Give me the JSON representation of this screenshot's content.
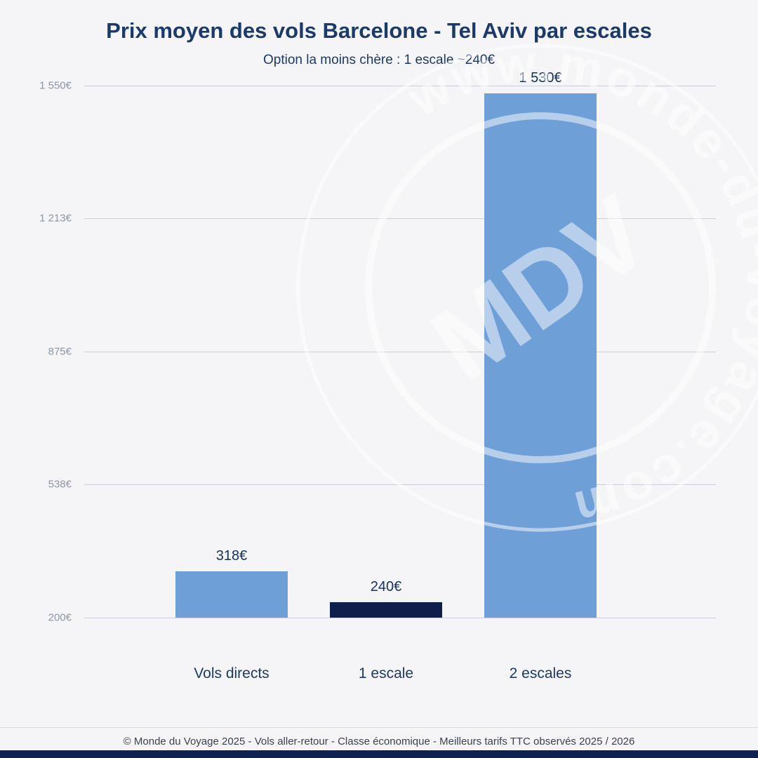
{
  "title": "Prix moyen des vols Barcelone - Tel Aviv par escales",
  "subtitle": "Option la moins chère : 1 escale ~240€",
  "chart_data": {
    "type": "bar",
    "title": "Prix moyen des vols Barcelone - Tel Aviv par escales",
    "subtitle": "Option la moins chère : 1 escale ~240€",
    "categories": [
      "Vols directs",
      "1 escale",
      "2 escales"
    ],
    "values": [
      318,
      240,
      1530
    ],
    "value_labels": [
      "318€",
      "240€",
      "1 530€"
    ],
    "bar_colors": [
      "#6f9fd7",
      "#0d1f4a",
      "#6f9fd7"
    ],
    "xlabel": "",
    "ylabel": "",
    "ylim": [
      200,
      1550
    ],
    "yticks": [
      200,
      538,
      875,
      1213,
      1550
    ],
    "ytick_labels": [
      "200€",
      "538€",
      "875€",
      "1 213€",
      "1 550€"
    ],
    "grid": true,
    "legend": false
  },
  "watermark": {
    "ring_text": "www.monde-du-voyage.com",
    "center_text": "MDV"
  },
  "footer": {
    "text": "© Monde du Voyage 2025 - Vols aller-retour - Classe économique - Meilleurs tarifs TTC observés 2025 / 2026"
  },
  "colors": {
    "background": "#f5f5f7",
    "heading": "#1b3a69",
    "bar_light": "#6f9fd7",
    "bar_dark": "#0d1f4a",
    "gridline": "#c9cdd9",
    "tick_label": "#8c95a5",
    "footer_text": "#3a4150",
    "bottom_bar": "#0e2150"
  }
}
